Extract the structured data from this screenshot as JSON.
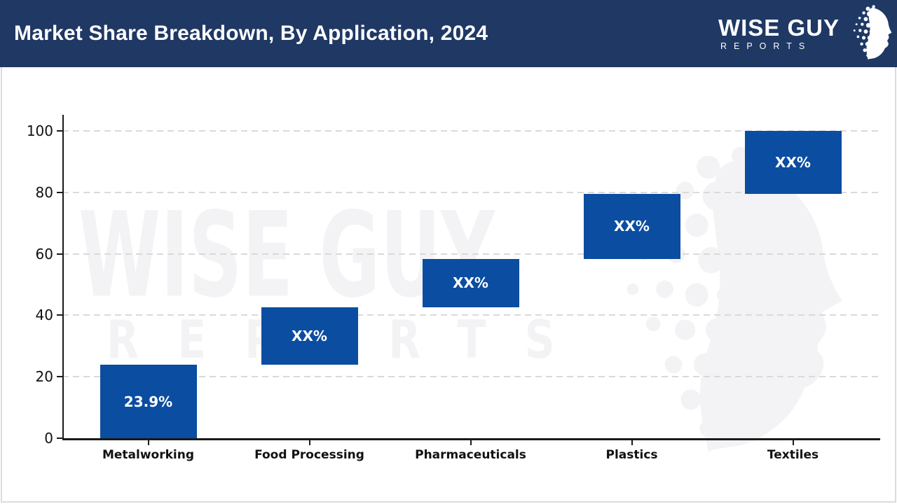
{
  "header": {
    "title": "Market Share Breakdown, By Application, 2024",
    "logo": {
      "line1": "WISE GUY",
      "line2": "REPORTS"
    }
  },
  "watermark": {
    "line1": "WISE GUY",
    "line2": "REPORTS"
  },
  "colors": {
    "header_bg": "#1f3864",
    "bar": "#0b4da1",
    "grid": "#d9d9d9",
    "axis": "#1a1a1a",
    "watermark": "#f3f3f5",
    "bar_label": "#ffffff",
    "title_text": "#ffffff"
  },
  "chart_data": {
    "type": "bar",
    "subtype": "waterfall",
    "title": "Market Share Breakdown, By Application, 2024",
    "xlabel": "",
    "ylabel": "",
    "categories": [
      "Metalworking",
      "Food Processing",
      "Pharmaceuticals",
      "Plastics",
      "Textiles"
    ],
    "segments": [
      {
        "category": "Metalworking",
        "start": 0,
        "end": 23.9,
        "value": 23.9,
        "label": "23.9%"
      },
      {
        "category": "Food Processing",
        "start": 23.9,
        "end": 42.7,
        "value": 18.8,
        "label": "XX%"
      },
      {
        "category": "Pharmaceuticals",
        "start": 42.7,
        "end": 58.4,
        "value": 15.7,
        "label": "XX%"
      },
      {
        "category": "Plastics",
        "start": 58.4,
        "end": 79.6,
        "value": 21.2,
        "label": "XX%"
      },
      {
        "category": "Textiles",
        "start": 79.6,
        "end": 100,
        "value": 20.4,
        "label": "XX%"
      }
    ],
    "yticks": [
      0,
      20,
      40,
      60,
      80,
      100
    ],
    "ylim": [
      0,
      105
    ],
    "grid": "horizontal-dashed",
    "legend": "none"
  }
}
